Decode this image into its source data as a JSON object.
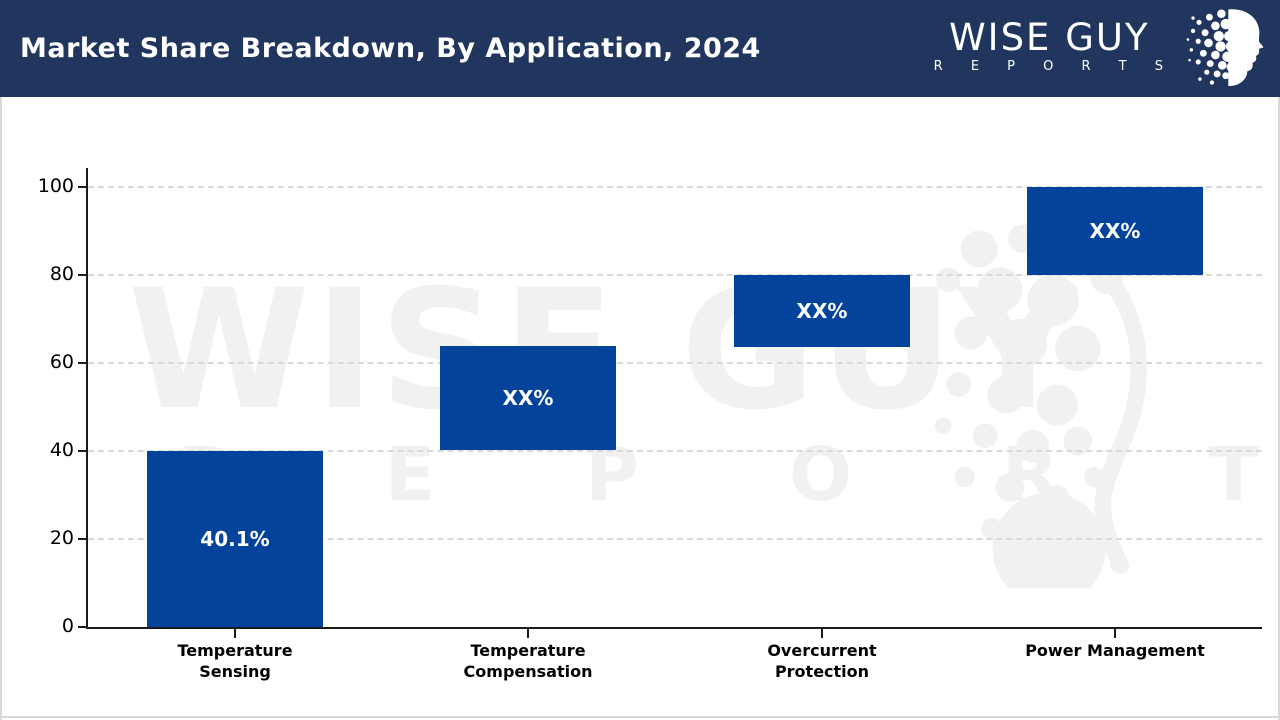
{
  "header": {
    "title": "Market Share Breakdown, By Application, 2024",
    "brand": {
      "line1": "WISE GUY",
      "line2": "R E P O R T S"
    }
  },
  "watermark": {
    "line1": "WISE GUY",
    "line2": "R E P O R T S"
  },
  "colors": {
    "header_navy": "#21365F",
    "bar_blue": "#04439C",
    "grid_gray": "#D9D9D9",
    "axis_black": "#1a1a1a",
    "watermark_gray": "#F1F1F1",
    "value_label_white": "#FFFFFF"
  },
  "chart_data": {
    "type": "bar",
    "subtype": "waterfall",
    "title": "Market Share Breakdown, By Application, 2024",
    "categories": [
      "Temperature Sensing",
      "Temperature Compensation",
      "Overcurrent Protection",
      "Power Management"
    ],
    "bars": [
      {
        "category": "Temperature Sensing",
        "label_lines": [
          "Temperature",
          "Sensing"
        ],
        "start": 0,
        "end": 40.1,
        "value_label": "40.1%"
      },
      {
        "category": "Temperature Compensation",
        "label_lines": [
          "Temperature",
          "Compensation"
        ],
        "start": 40.1,
        "end": 63.8,
        "value_label": "XX%"
      },
      {
        "category": "Overcurrent Protection",
        "label_lines": [
          "Overcurrent",
          "Protection"
        ],
        "start": 63.8,
        "end": 80.1,
        "value_label": "XX%"
      },
      {
        "category": "Power Management",
        "label_lines": [
          "Power Management"
        ],
        "start": 80.1,
        "end": 100,
        "value_label": "XX%"
      }
    ],
    "yticks": [
      0,
      20,
      40,
      60,
      80,
      100
    ],
    "ylim": [
      0,
      100
    ],
    "xlabel": "",
    "ylabel": "",
    "grid": "horizontal-dashed",
    "legend": "none"
  }
}
